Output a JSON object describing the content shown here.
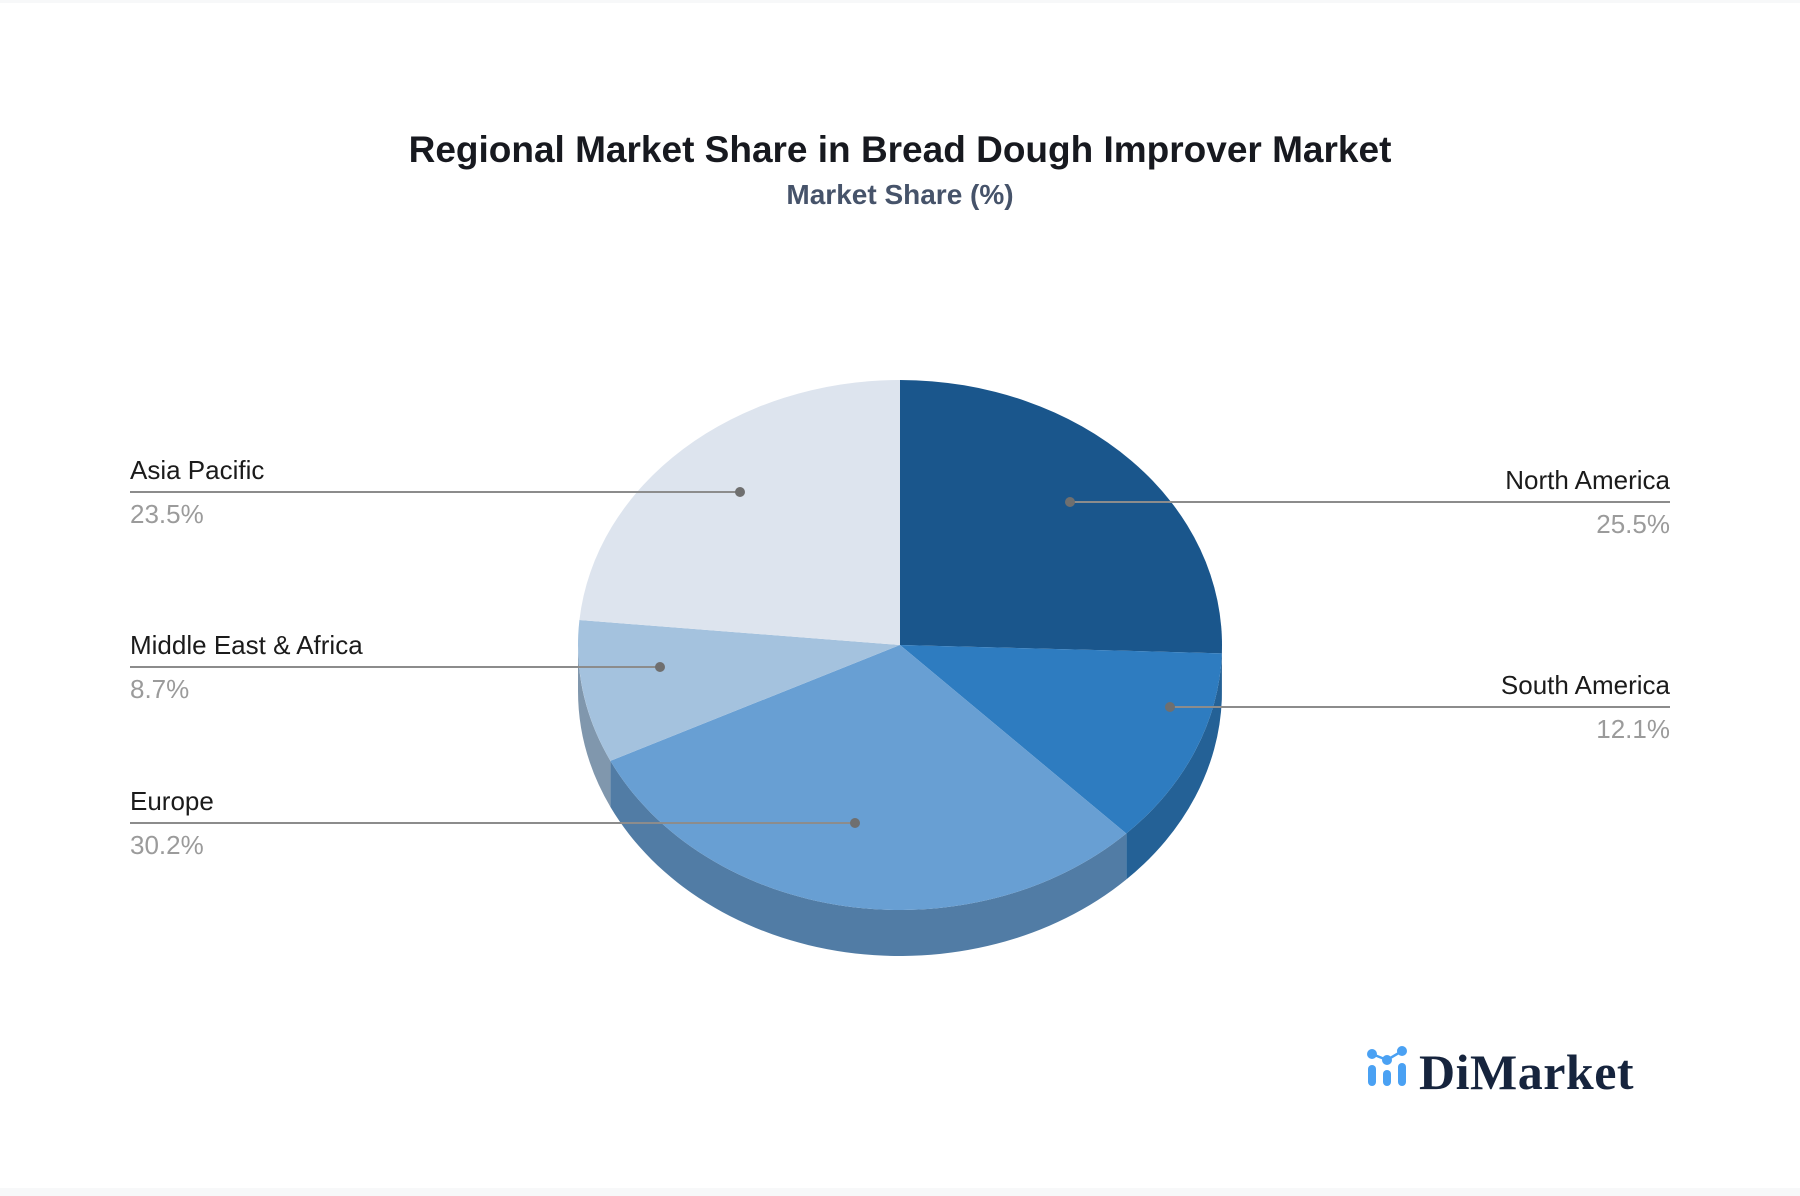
{
  "header": {
    "title": "Regional Market Share in Bread Dough Improver Market",
    "subtitle": "Market Share (%)"
  },
  "chart_data": {
    "type": "pie",
    "style": "3d",
    "title": "Regional Market Share in Bread Dough Improver Market",
    "subtitle": "Market Share (%)",
    "unit": "%",
    "start_angle": "12-oclock",
    "direction": "clockwise",
    "legend_position": "callout-labels-left-and-right",
    "leader_line_color": "#8c8c8c",
    "leader_dot_color": "#6f6f6f",
    "label_color": "#1b1b1b",
    "value_color": "#9b9b9b",
    "slices": [
      {
        "label": "North America",
        "value": 25.5,
        "display": "25.5%",
        "color": "#1a568c"
      },
      {
        "label": "South America",
        "value": 12.1,
        "display": "12.1%",
        "color": "#2e7cc0"
      },
      {
        "label": "Europe",
        "value": 30.2,
        "display": "30.2%",
        "color": "#689fd3"
      },
      {
        "label": "Middle East & Africa",
        "value": 8.7,
        "display": "8.7%",
        "color": "#a4c2de"
      },
      {
        "label": "Asia Pacific",
        "value": 23.5,
        "display": "23.5%",
        "color": "#dde4ee"
      }
    ]
  },
  "branding": {
    "logo_text": "DiMarket",
    "logo_icon": "bar-line-chart-icon",
    "icon_color": "#4aa1f3",
    "text_color": "#16243d"
  }
}
